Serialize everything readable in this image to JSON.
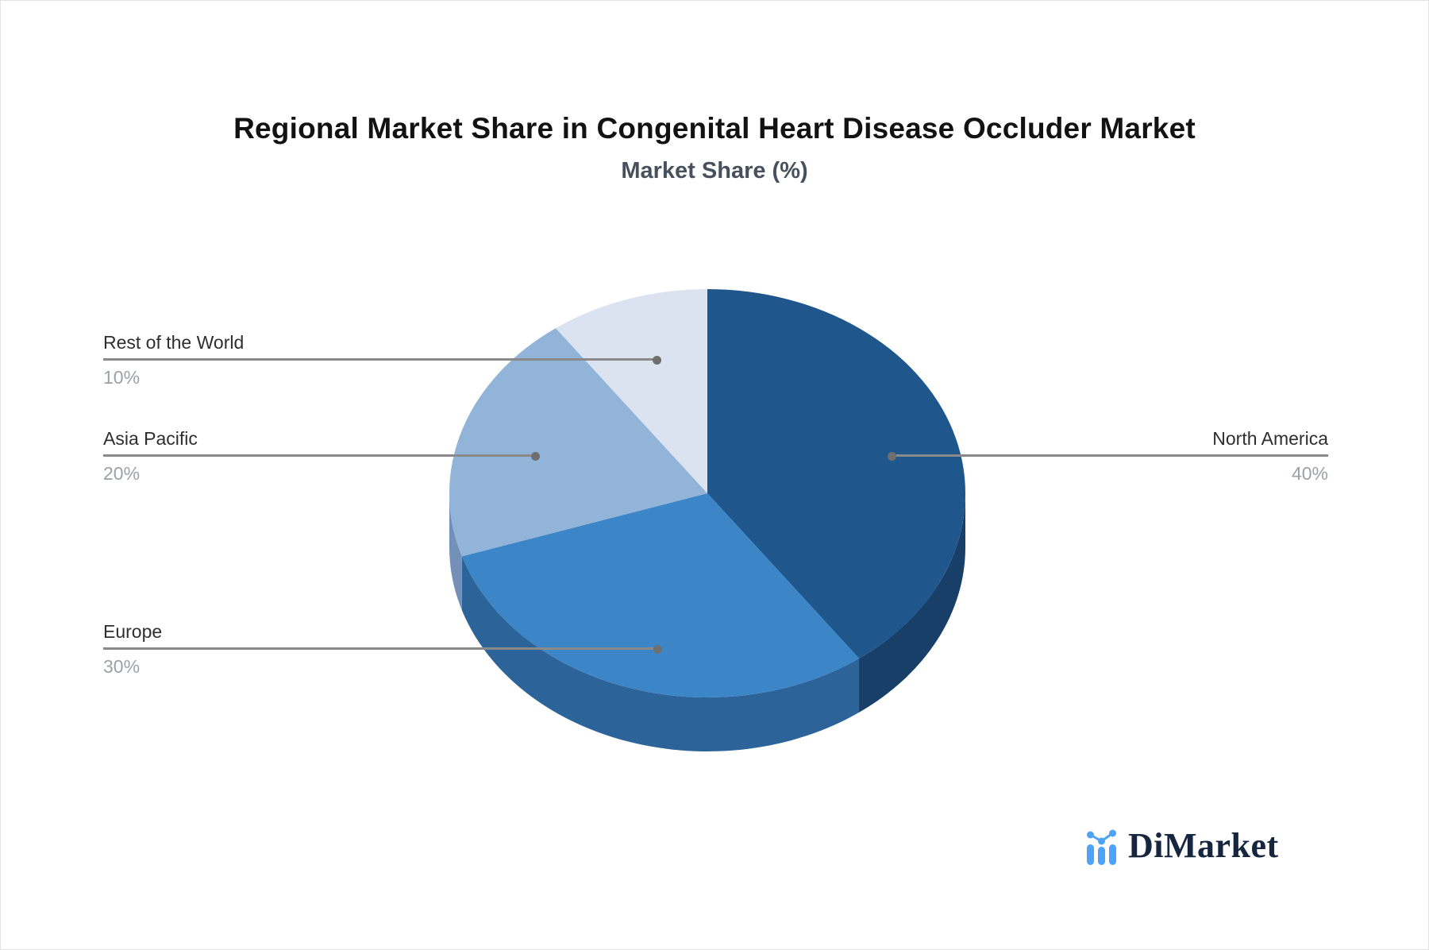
{
  "header": {
    "title": "Regional Market Share in Congenital Heart Disease Occluder Market",
    "subtitle": "Market Share (%)"
  },
  "chart_data": {
    "type": "pie",
    "style": "3d-extruded",
    "title": "Regional Market Share in Congenital Heart Disease Occluder Market",
    "subtitle": "Market Share (%)",
    "unit": "%",
    "start_angle": "12-o-clock",
    "direction": "clockwise",
    "legend_position": "outside-callouts",
    "slices": [
      {
        "label": "North America",
        "value": 40,
        "display": "40%",
        "color": "#1F568C",
        "side_color": "#173F68"
      },
      {
        "label": "Europe",
        "value": 30,
        "display": "30%",
        "color": "#3C86C8",
        "side_color": "#2C649A"
      },
      {
        "label": "Asia Pacific",
        "value": 20,
        "display": "20%",
        "color": "#92B4D9",
        "side_color": "#7391B8"
      },
      {
        "label": "Rest of the World",
        "value": 10,
        "display": "10%",
        "color": "#DCE3F0",
        "side_color": "#BFC9DC"
      }
    ],
    "callout_line_color": "#8A8A8A",
    "callout_dot_color": "#6F6F6F"
  },
  "branding": {
    "logo_text": "DiMarket",
    "icon": "bar-line-chart-icon",
    "icon_color": "#4DA3F7",
    "text_color": "#16263F"
  }
}
